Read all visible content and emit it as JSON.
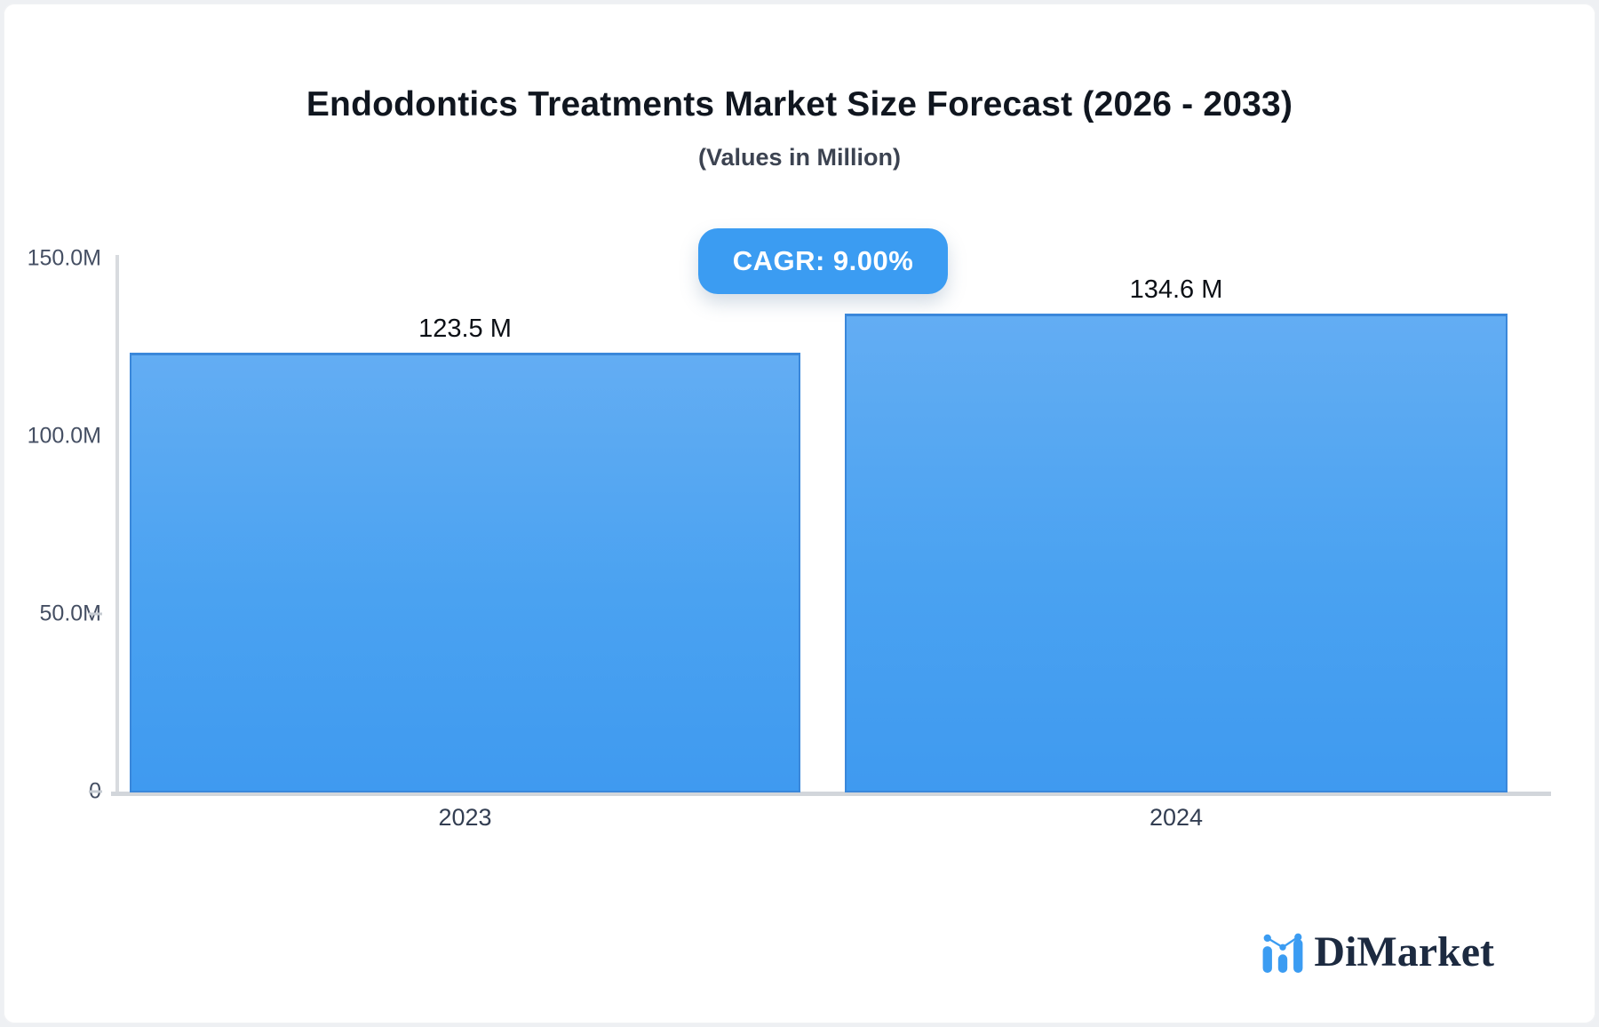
{
  "chart_data": {
    "type": "bar",
    "title": "Endodontics Treatments Market Size Forecast (2026 - 2033)",
    "subtitle": "(Values in Million)",
    "annotation_badge": "CAGR: 9.00%",
    "categories": [
      "2023",
      "2024"
    ],
    "values": [
      123.5,
      134.6
    ],
    "value_labels": [
      "123.5 M",
      "134.6 M"
    ],
    "ylim": [
      0,
      150
    ],
    "yticks": [
      {
        "value": 150,
        "label": "150.0M"
      },
      {
        "value": 100,
        "label": "100.0M"
      },
      {
        "value": 50,
        "label": "50.0M"
      },
      {
        "value": 0,
        "label": "0"
      }
    ],
    "grid": false,
    "legend": false,
    "colors": {
      "bar_fill_top": "#63adf3",
      "bar_fill_bottom": "#3f9af0",
      "bar_border": "#3a87da",
      "badge_background": "#3b9cf2",
      "badge_text": "#ffffff",
      "axis_line": "#d5d8dd",
      "title_text": "#10161f",
      "axis_label_text": "#454f63"
    }
  },
  "brand": {
    "name": "DiMarket",
    "icon": "bar-line-chart-logo",
    "icon_color": "#3b9cf2",
    "text_color": "#1c2a40"
  }
}
